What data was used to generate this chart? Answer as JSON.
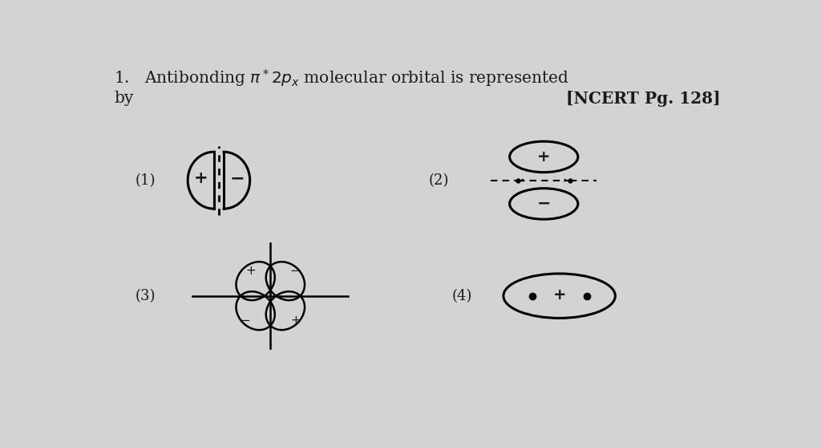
{
  "bg_color": "#d3d3d3",
  "text_color": "#1a1a1a",
  "ncert_ref": "[NCERT Pg. 128]",
  "option1_label": "(1)",
  "option2_label": "(2)",
  "option3_label": "(3)",
  "option4_label": "(4)",
  "fig_w": 10.24,
  "fig_h": 5.57,
  "xlim": [
    0,
    10.24
  ],
  "ylim": [
    0,
    5.57
  ]
}
